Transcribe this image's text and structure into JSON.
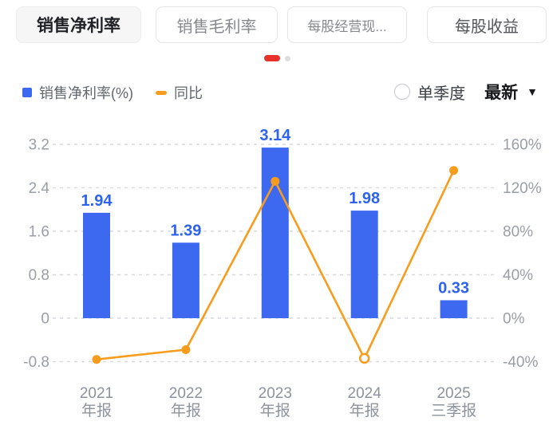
{
  "tabs": [
    {
      "label": "销售净利率",
      "active": true
    },
    {
      "label": "销售毛利率",
      "active": false
    },
    {
      "label": "每股经营现...",
      "active": false
    },
    {
      "label": "每股收益",
      "active": false
    }
  ],
  "pager": {
    "total_dots": 2,
    "active_index": 0,
    "active_color": "#E63229",
    "inactive_color": "#DDDDE0"
  },
  "legend": {
    "items": [
      {
        "label": "销售净利率(%)",
        "marker": "square",
        "color": "#3C69F0"
      },
      {
        "label": "同比",
        "marker": "dash",
        "color": "#F79C1D"
      }
    ]
  },
  "controls": {
    "radio_label": "单季度",
    "radio_checked": false,
    "dropdown_label": "最新",
    "caret_icon": "▼"
  },
  "chart_data": {
    "type": "bar",
    "subtype": "combo-bar-line-dual-axis",
    "categories": [
      {
        "line1": "2021",
        "line2": "年报"
      },
      {
        "line1": "2022",
        "line2": "年报"
      },
      {
        "line1": "2023",
        "line2": "年报"
      },
      {
        "line1": "2024",
        "line2": "年报"
      },
      {
        "line1": "2025",
        "line2": "三季报"
      }
    ],
    "series": [
      {
        "name": "销售净利率(%)",
        "type": "bar",
        "axis": "left",
        "color": "#3C69F0",
        "values": [
          1.94,
          1.39,
          3.14,
          1.98,
          0.33
        ],
        "value_labels": [
          "1.94",
          "1.39",
          "3.14",
          "1.98",
          "0.33"
        ],
        "label_color": "#2D63EE"
      },
      {
        "name": "同比",
        "type": "line",
        "axis": "right",
        "color": "#F79C1D",
        "values_percent": [
          -38,
          -29,
          126,
          -37,
          136
        ],
        "point_style": [
          "filled",
          "filled",
          "filled",
          "hollow",
          "filled"
        ]
      }
    ],
    "left_axis": {
      "labels": [
        "3.2",
        "2.4",
        "1.6",
        "0.8",
        "0",
        "-0.8"
      ],
      "max": 3.2,
      "min": -0.8,
      "step": 0.8
    },
    "right_axis": {
      "labels": [
        "160%",
        "120%",
        "80%",
        "40%",
        "0%",
        "-40%"
      ],
      "max": 160,
      "min": -40,
      "step": 40
    },
    "grid": {
      "style": "dashed",
      "color": "#D8D9DD"
    },
    "tick_label_color": "#9A9EA6",
    "x_label_color": "#8D939C",
    "legend_position": "top-left"
  }
}
